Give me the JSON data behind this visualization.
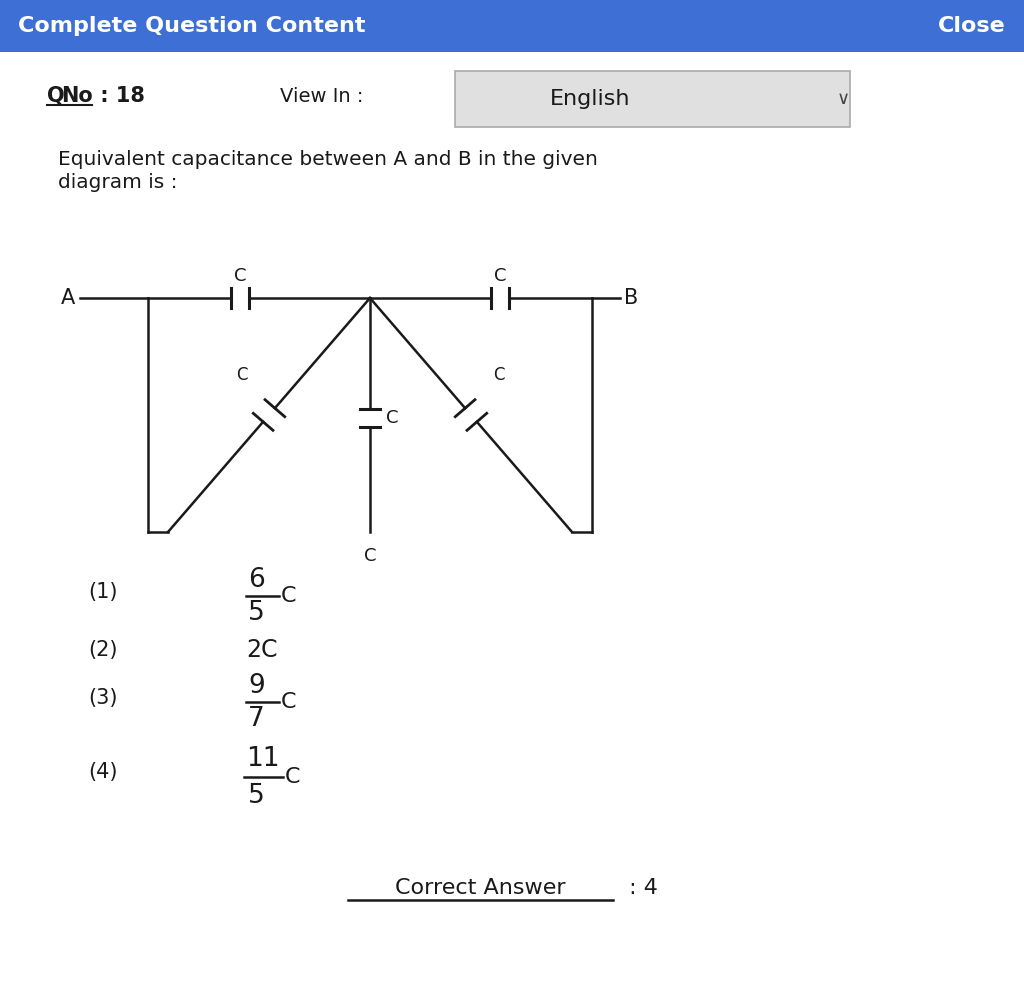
{
  "bg_color": "#ffffff",
  "header_color": "#3d6fd4",
  "header_text": "Complete Question Content",
  "header_close": "Close",
  "font_color": "#1a1a1a",
  "qno_text": "Q No : 18",
  "viewin_text": "View In :",
  "english_text": "English",
  "question_line1": "Equivalent capacitance between A and B in the given",
  "question_line2": "diagram is :",
  "correct_answer_text": "Correct Answer",
  "correct_answer_num": " : 4"
}
